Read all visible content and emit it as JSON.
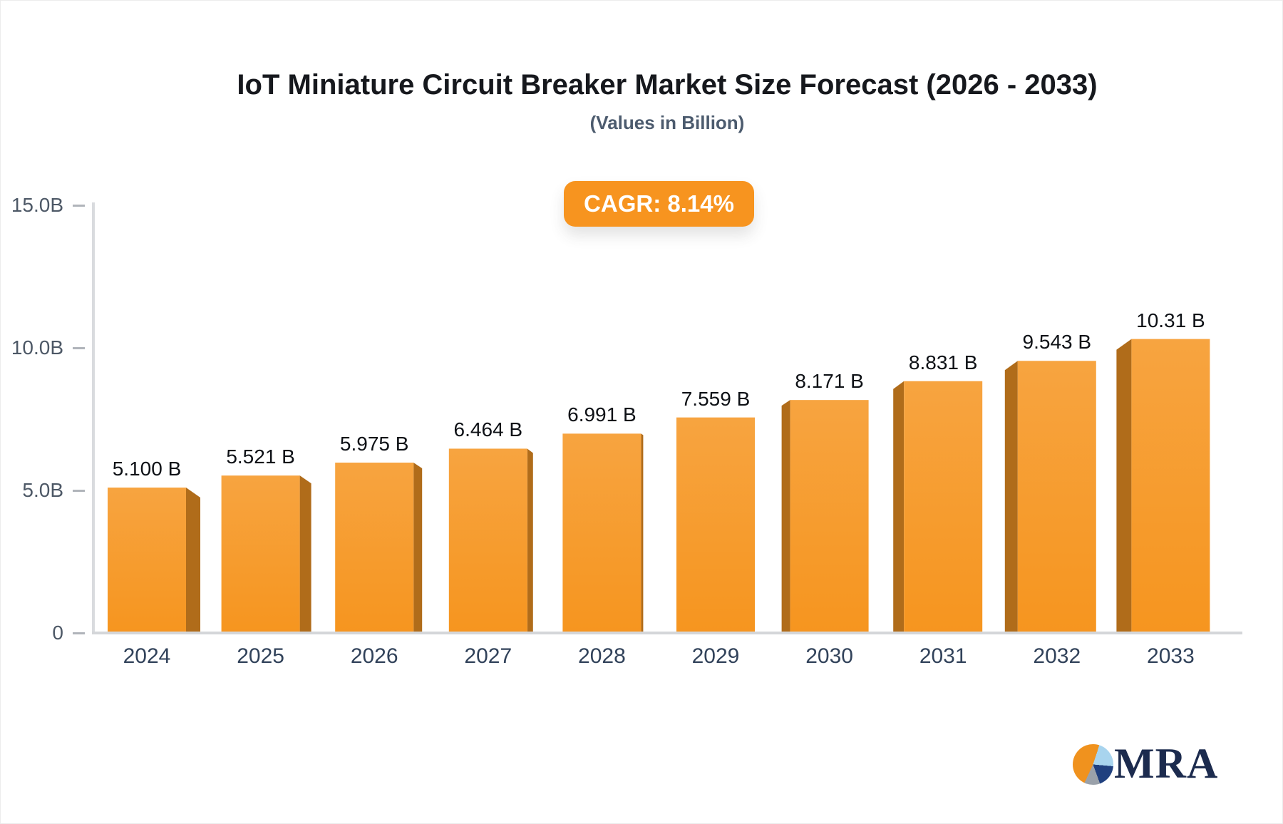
{
  "title": "IoT Miniature Circuit Breaker Market Size Forecast (2026 - 2033)",
  "subtitle": "(Values in Billion)",
  "badge": {
    "label": "CAGR: 8.14%",
    "color": "#f7941f"
  },
  "logo": {
    "text": "MRA"
  },
  "chart_data": {
    "type": "bar",
    "title": "IoT Miniature Circuit Breaker Market Size Forecast (2026 - 2033)",
    "subtitle": "(Values in Billion)",
    "cagr_percent": 8.14,
    "categories": [
      "2024",
      "2025",
      "2026",
      "2027",
      "2028",
      "2029",
      "2030",
      "2031",
      "2032",
      "2033"
    ],
    "values": [
      5.1,
      5.521,
      5.975,
      6.464,
      6.991,
      7.559,
      8.171,
      8.831,
      9.543,
      10.31
    ],
    "value_labels": [
      "5.100 B",
      "5.521 B",
      "5.975 B",
      "6.464 B",
      "6.991 B",
      "7.559 B",
      "8.171 B",
      "8.831 B",
      "9.543 B",
      "10.31 B"
    ],
    "xlabel": "",
    "ylabel": "",
    "ylim": [
      0,
      15
    ],
    "y_ticks": [
      {
        "value": 15,
        "label": "15.0B"
      },
      {
        "value": 10,
        "label": "10.0B"
      },
      {
        "value": 5,
        "label": "5.0B"
      },
      {
        "value": 0,
        "label": "0"
      }
    ],
    "grid": false,
    "legend_position": "none",
    "bar_face_color_top": "#f7a440",
    "bar_face_color_bottom": "#f6951f",
    "bar_side_color": "#b06c1a"
  }
}
